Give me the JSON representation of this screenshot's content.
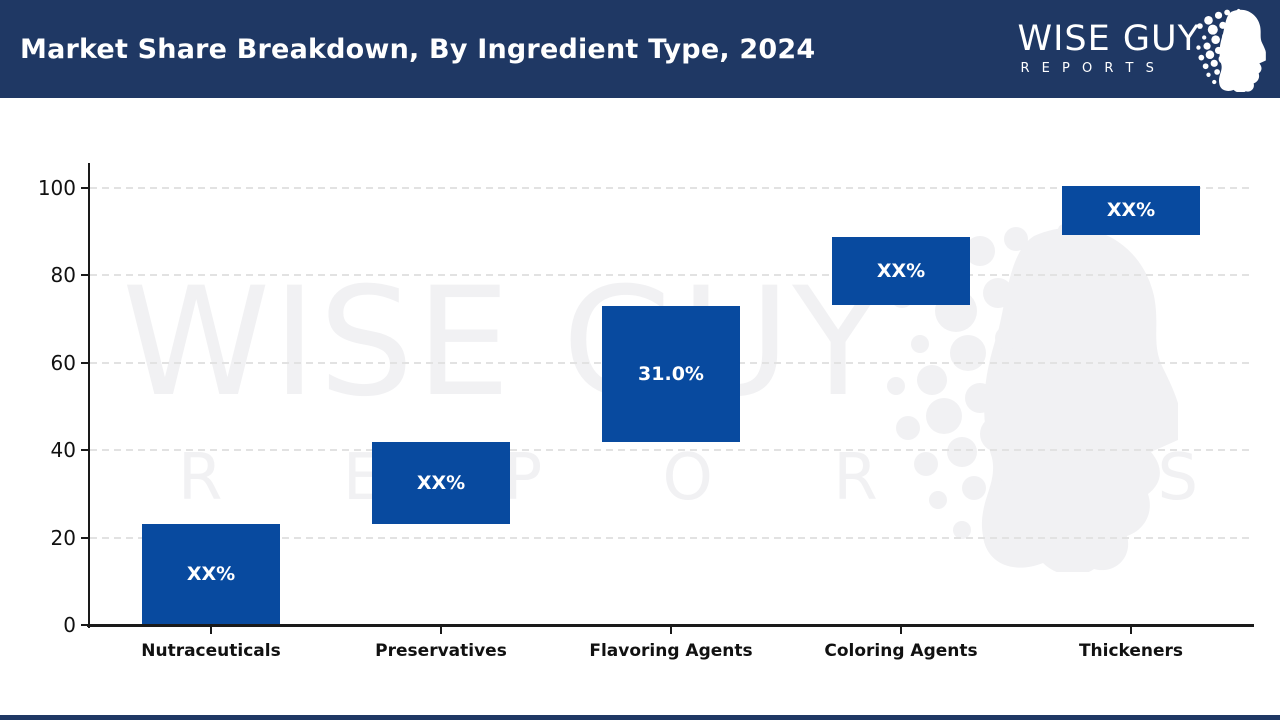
{
  "header": {
    "title": "Market Share Breakdown, By Ingredient Type, 2024"
  },
  "logo": {
    "wordmark": "WISE GUY",
    "subtext": "R E P O R T S",
    "face_icon": "dotted-head-profile"
  },
  "watermark": {
    "wordmark": "WISE GUY",
    "subtext": "R E P O R T S",
    "face_icon": "dotted-head-profile"
  },
  "colors": {
    "header_bg": "#1f3864",
    "footer_bg": "#1f3864",
    "bar": "#084a9f",
    "bar_label": "#ffffff",
    "gridline": "#e2e2e2",
    "axis": "#1a1a1a",
    "watermark": "#f1f1f3",
    "title_text": "#ffffff"
  },
  "chart_data": {
    "type": "bar",
    "subtype": "floating-waterfall",
    "title": "Market Share Breakdown, By Ingredient Type, 2024",
    "xlabel": "",
    "ylabel": "",
    "categories": [
      "Nutraceuticals",
      "Preservatives",
      "Flavoring Agents",
      "Coloring Agents",
      "Thickeners"
    ],
    "segments": [
      {
        "category": "Nutraceuticals",
        "start": 0,
        "end": 23.2,
        "label": "XX%"
      },
      {
        "category": "Preservatives",
        "start": 23.2,
        "end": 41.9,
        "label": "XX%"
      },
      {
        "category": "Flavoring Agents",
        "start": 41.9,
        "end": 72.9,
        "label": "31.0%"
      },
      {
        "category": "Coloring Agents",
        "start": 73.1,
        "end": 88.6,
        "label": "XX%"
      },
      {
        "category": "Thickeners",
        "start": 89.2,
        "end": 100.4,
        "label": "XX%"
      }
    ],
    "yticks": [
      0,
      20,
      40,
      60,
      80,
      100
    ],
    "ylim": [
      0,
      105.6
    ],
    "grid": "horizontal-dashed",
    "legend": "none"
  }
}
